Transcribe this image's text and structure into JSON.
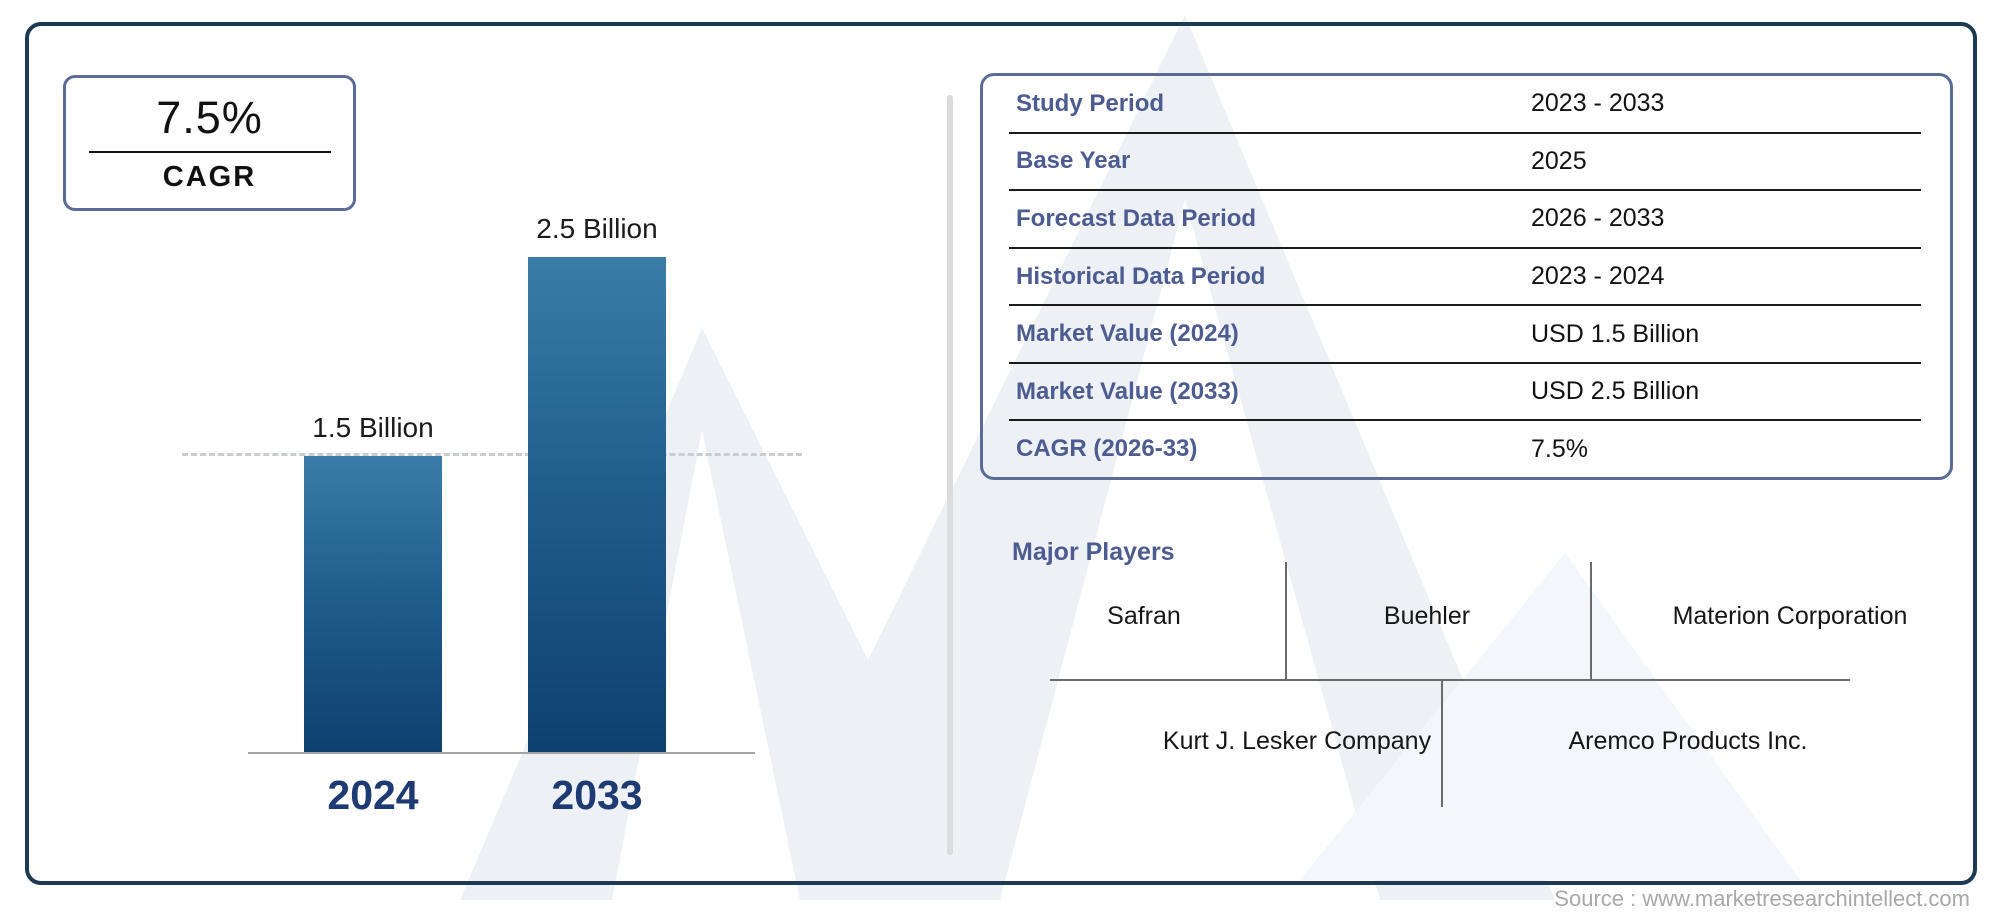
{
  "cagr_badge": {
    "value": "7.5%",
    "label": "CAGR"
  },
  "chart_data": {
    "type": "bar",
    "categories": [
      "2024",
      "2033"
    ],
    "values": [
      1.5,
      2.5
    ],
    "unit": "USD Billion",
    "bar_labels": [
      "1.5 Billion",
      "2.5 Billion"
    ],
    "reference_line_value": 1.5,
    "reference_line_style": "dashed",
    "ylim": [
      0,
      2.5
    ],
    "title": "",
    "xlabel": "",
    "ylabel": "",
    "legend": "none",
    "grid": false,
    "bar_color_top": "#3a7ca7",
    "bar_color_bottom": "#0e406f"
  },
  "info_table": {
    "rows": [
      {
        "label": "Study Period",
        "value": "2023 - 2033"
      },
      {
        "label": "Base Year",
        "value": "2025"
      },
      {
        "label": "Forecast Data Period",
        "value": "2026 - 2033"
      },
      {
        "label": "Historical Data Period",
        "value": "2023 - 2024"
      },
      {
        "label": "Market Value (2024)",
        "value": "USD 1.5 Billion"
      },
      {
        "label": "Market Value (2033)",
        "value": "USD 2.5 Billion"
      },
      {
        "label": "CAGR (2026-33)",
        "value": "7.5%"
      }
    ]
  },
  "major_players": {
    "title": "Major Players",
    "row1": [
      "Safran",
      "Buehler",
      "Materion Corporation"
    ],
    "row2": [
      "Kurt J. Lesker Company",
      "Aremco Products Inc."
    ]
  },
  "footer": {
    "source": "Source : www.marketresearchintellect.com"
  },
  "colors": {
    "frame_border": "#1d3a52",
    "panel_border": "#5b6b97",
    "label_blue": "#4d5c90",
    "year_label_navy": "#1e3a73",
    "watermark": "#edf1f6"
  }
}
